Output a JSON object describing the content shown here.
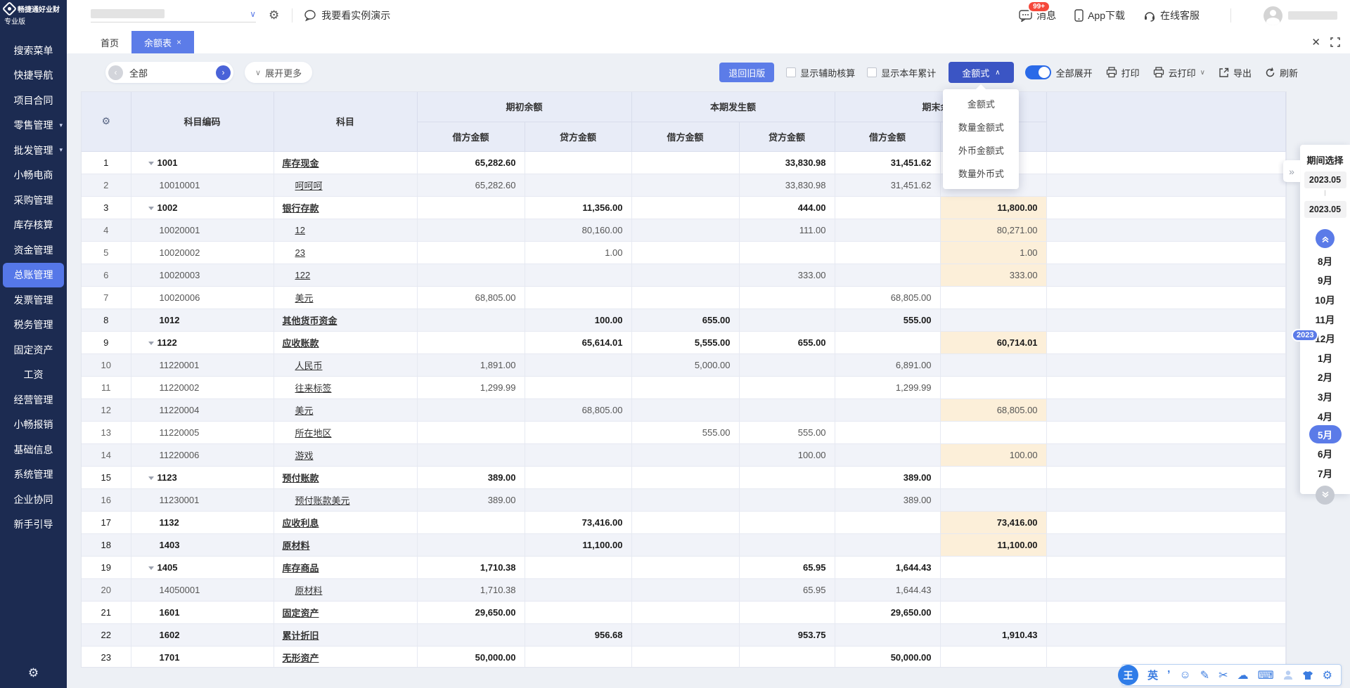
{
  "app": {
    "brand": "畅捷通好业财",
    "edition": "专业版"
  },
  "topbar": {
    "demo_link": "我要看实例演示",
    "messages_label": "消息",
    "messages_badge": "99+",
    "app_download_label": "App下载",
    "support_label": "在线客服"
  },
  "sidebar": {
    "items": [
      {
        "label": "搜索菜单"
      },
      {
        "label": "快捷导航"
      },
      {
        "label": "项目合同"
      },
      {
        "label": "零售管理",
        "arrow": true
      },
      {
        "label": "批发管理",
        "arrow": true
      },
      {
        "label": "小畅电商"
      },
      {
        "label": "采购管理"
      },
      {
        "label": "库存核算"
      },
      {
        "label": "资金管理"
      },
      {
        "label": "总账管理",
        "active": true
      },
      {
        "label": "发票管理"
      },
      {
        "label": "税务管理"
      },
      {
        "label": "固定资产"
      },
      {
        "label": "工资"
      },
      {
        "label": "经营管理"
      },
      {
        "label": "小畅报销"
      },
      {
        "label": "基础信息"
      },
      {
        "label": "系统管理"
      },
      {
        "label": "企业协同"
      },
      {
        "label": "新手引导"
      }
    ]
  },
  "tabs": [
    {
      "label": "首页",
      "active": false
    },
    {
      "label": "余额表",
      "active": true,
      "closable": true
    }
  ],
  "toolbar": {
    "scope_label": "全部",
    "expand_more_label": "展开更多",
    "back_button": "退回旧版",
    "checkbox_aux": "显示辅助核算",
    "checkbox_ytd": "显示本年累计",
    "format_button": "金额式",
    "toggle_label": "全部展开",
    "print_label": "打印",
    "cloud_print_label": "云打印",
    "export_label": "导出",
    "refresh_label": "刷新"
  },
  "format_menu": {
    "items": [
      "金额式",
      "数量金额式",
      "外币金额式",
      "数量外币式"
    ]
  },
  "table": {
    "headers": {
      "code": "科目编码",
      "subject": "科目",
      "opening": "期初余额",
      "current": "本期发生额",
      "closing": "期末余额",
      "debit": "借方金额",
      "credit": "贷方金额"
    },
    "rows": [
      {
        "n": 1,
        "code": "1001",
        "name": "库存现金",
        "parent": true,
        "tri": true,
        "v": [
          "65,282.60",
          "",
          "",
          "33,830.98",
          "31,451.62",
          ""
        ],
        "hl": []
      },
      {
        "n": 2,
        "code": "10010001",
        "name": "呵呵呵",
        "parent": false,
        "tri": false,
        "v": [
          "65,282.60",
          "",
          "",
          "33,830.98",
          "31,451.62",
          ""
        ],
        "hl": []
      },
      {
        "n": 3,
        "code": "1002",
        "name": "银行存款",
        "parent": true,
        "tri": true,
        "v": [
          "",
          "11,356.00",
          "",
          "444.00",
          "",
          "11,800.00"
        ],
        "hl": [
          5
        ]
      },
      {
        "n": 4,
        "code": "10020001",
        "name": "12",
        "parent": false,
        "tri": false,
        "v": [
          "",
          "80,160.00",
          "",
          "111.00",
          "",
          "80,271.00"
        ],
        "hl": [
          5
        ]
      },
      {
        "n": 5,
        "code": "10020002",
        "name": "23",
        "parent": false,
        "tri": false,
        "v": [
          "",
          "1.00",
          "",
          "",
          "",
          "1.00"
        ],
        "hl": [
          5
        ]
      },
      {
        "n": 6,
        "code": "10020003",
        "name": "122",
        "parent": false,
        "tri": false,
        "v": [
          "",
          "",
          "",
          "333.00",
          "",
          "333.00"
        ],
        "hl": [
          5
        ]
      },
      {
        "n": 7,
        "code": "10020006",
        "name": "美元",
        "parent": false,
        "tri": false,
        "v": [
          "68,805.00",
          "",
          "",
          "",
          "68,805.00",
          ""
        ],
        "hl": []
      },
      {
        "n": 8,
        "code": "1012",
        "name": "其他货币资金",
        "parent": true,
        "tri": false,
        "v": [
          "",
          "100.00",
          "655.00",
          "",
          "555.00",
          ""
        ],
        "hl": []
      },
      {
        "n": 9,
        "code": "1122",
        "name": "应收账款",
        "parent": true,
        "tri": true,
        "v": [
          "",
          "65,614.01",
          "5,555.00",
          "655.00",
          "",
          "60,714.01"
        ],
        "hl": [
          5
        ]
      },
      {
        "n": 10,
        "code": "11220001",
        "name": "人民币",
        "parent": false,
        "tri": false,
        "v": [
          "1,891.00",
          "",
          "5,000.00",
          "",
          "6,891.00",
          ""
        ],
        "hl": []
      },
      {
        "n": 11,
        "code": "11220002",
        "name": "往来标签",
        "parent": false,
        "tri": false,
        "v": [
          "1,299.99",
          "",
          "",
          "",
          "1,299.99",
          ""
        ],
        "hl": []
      },
      {
        "n": 12,
        "code": "11220004",
        "name": "美元",
        "parent": false,
        "tri": false,
        "v": [
          "",
          "68,805.00",
          "",
          "",
          "",
          "68,805.00"
        ],
        "hl": [
          5
        ]
      },
      {
        "n": 13,
        "code": "11220005",
        "name": "所在地区",
        "parent": false,
        "tri": false,
        "v": [
          "",
          "",
          "555.00",
          "555.00",
          "",
          ""
        ],
        "hl": []
      },
      {
        "n": 14,
        "code": "11220006",
        "name": "游戏",
        "parent": false,
        "tri": false,
        "v": [
          "",
          "",
          "",
          "100.00",
          "",
          "100.00"
        ],
        "hl": [
          5
        ]
      },
      {
        "n": 15,
        "code": "1123",
        "name": "预付账款",
        "parent": true,
        "tri": true,
        "v": [
          "389.00",
          "",
          "",
          "",
          "389.00",
          ""
        ],
        "hl": []
      },
      {
        "n": 16,
        "code": "11230001",
        "name": "预付账款美元",
        "parent": false,
        "tri": false,
        "v": [
          "389.00",
          "",
          "",
          "",
          "389.00",
          ""
        ],
        "hl": []
      },
      {
        "n": 17,
        "code": "1132",
        "name": "应收利息",
        "parent": true,
        "tri": false,
        "v": [
          "",
          "73,416.00",
          "",
          "",
          "",
          "73,416.00"
        ],
        "hl": [
          5
        ]
      },
      {
        "n": 18,
        "code": "1403",
        "name": "原材料",
        "parent": true,
        "tri": false,
        "v": [
          "",
          "11,100.00",
          "",
          "",
          "",
          "11,100.00"
        ],
        "hl": [
          5
        ]
      },
      {
        "n": 19,
        "code": "1405",
        "name": "库存商品",
        "parent": true,
        "tri": true,
        "v": [
          "1,710.38",
          "",
          "",
          "65.95",
          "1,644.43",
          ""
        ],
        "hl": []
      },
      {
        "n": 20,
        "code": "14050001",
        "name": "原材料",
        "parent": false,
        "tri": false,
        "v": [
          "1,710.38",
          "",
          "",
          "65.95",
          "1,644.43",
          ""
        ],
        "hl": []
      },
      {
        "n": 21,
        "code": "1601",
        "name": "固定资产",
        "parent": true,
        "tri": false,
        "v": [
          "29,650.00",
          "",
          "",
          "",
          "29,650.00",
          ""
        ],
        "hl": []
      },
      {
        "n": 22,
        "code": "1602",
        "name": "累计折旧",
        "parent": true,
        "tri": false,
        "v": [
          "",
          "956.68",
          "",
          "953.75",
          "",
          "1,910.43"
        ],
        "hl": []
      },
      {
        "n": 23,
        "code": "1701",
        "name": "无形资产",
        "parent": true,
        "tri": false,
        "v": [
          "50,000.00",
          "",
          "",
          "",
          "50,000.00",
          ""
        ],
        "hl": []
      }
    ]
  },
  "period_panel": {
    "title": "期间选择",
    "from": "2023.05",
    "to": "2023.05",
    "year_badge": "2023",
    "months": [
      "8月",
      "9月",
      "10月",
      "11月",
      "12月",
      "1月",
      "2月",
      "3月",
      "4月",
      "5月",
      "6月",
      "7月"
    ],
    "selected_month": "5月"
  },
  "ime_bar": {
    "logo": "王",
    "lang": "英"
  },
  "colors": {
    "accent": "#5c7ce8",
    "accent_dark": "#3b55c4",
    "sidebar_bg": "#1c2b51",
    "highlight_cell": "#fcefd9",
    "badge_red": "#f5483b",
    "toggle_on": "#2a6ae8"
  }
}
